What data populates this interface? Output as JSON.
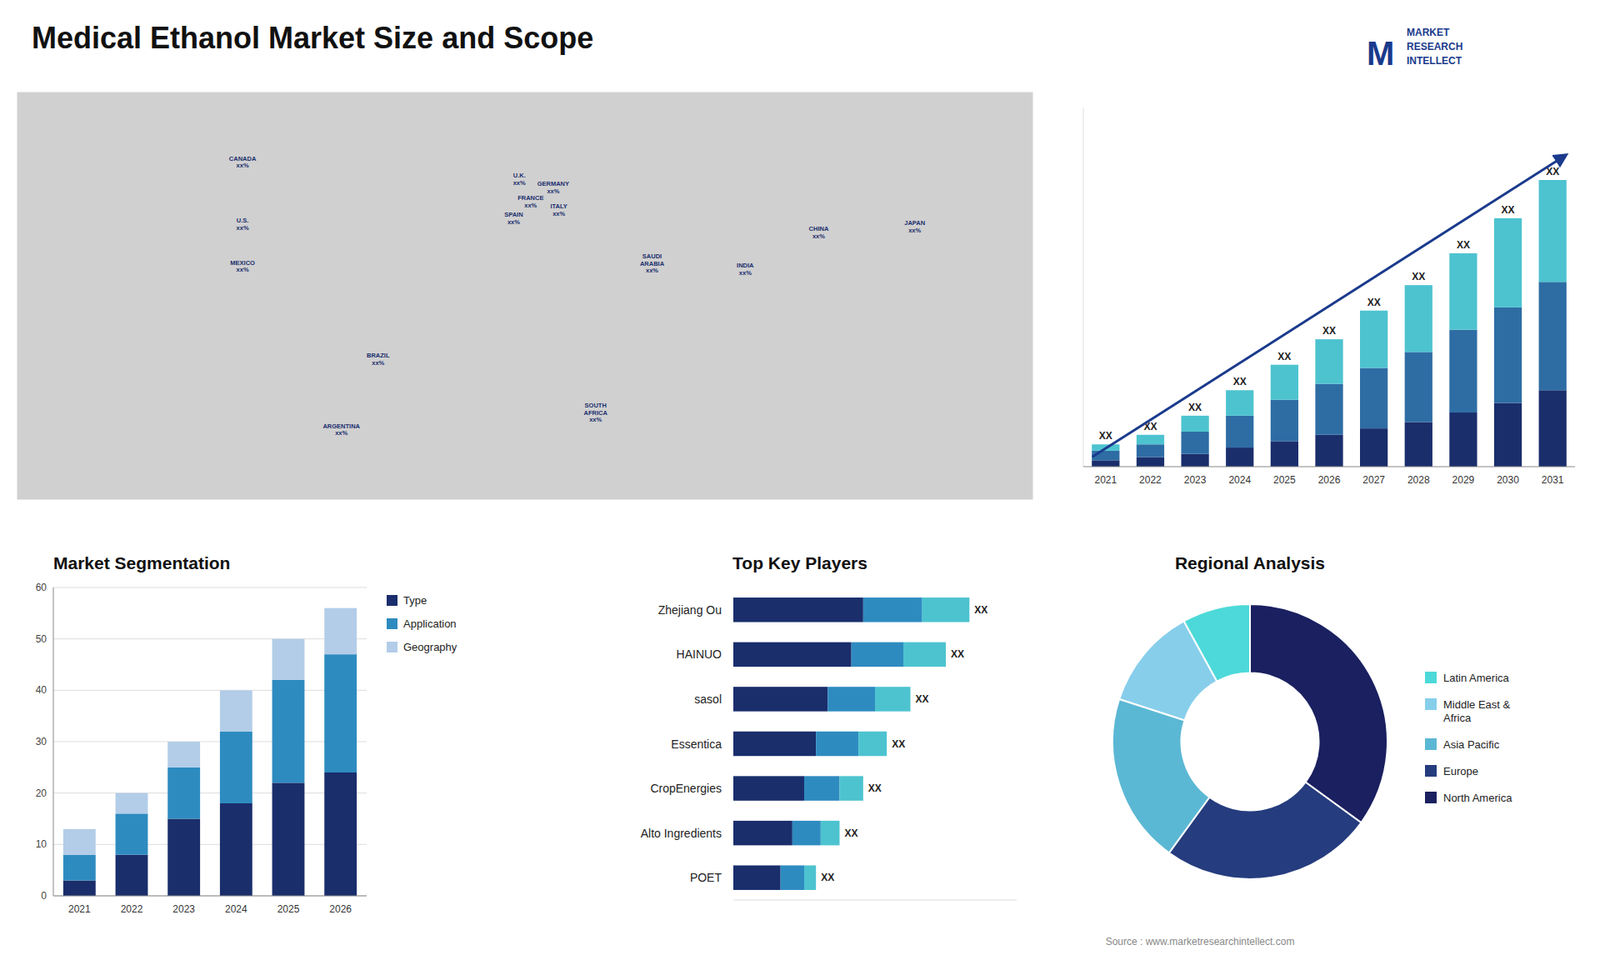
{
  "title": "Medical Ethanol Market Size and Scope",
  "source": "Source : www.marketresearchintellect.com",
  "logo_text": [
    "M",
    "MARKET",
    "RESEARCH",
    "INTELLECT"
  ],
  "chart_data": [
    {
      "type": "map",
      "xlim": [
        -180,
        180
      ],
      "ylim": [
        -60,
        85
      ],
      "tick_labels": false,
      "annotations": [
        {
          "text": "U.S.",
          "label": "xx%",
          "x": -100,
          "y": 38
        },
        {
          "text": "CANADA",
          "label": "xx%",
          "x": -100,
          "y": 60
        },
        {
          "text": "MEXICO",
          "label": "xx%",
          "x": -100,
          "y": 23
        },
        {
          "text": "BRAZIL",
          "label": "xx%",
          "x": -52,
          "y": -10
        },
        {
          "text": "ARGENTINA",
          "label": "xx%",
          "x": -65,
          "y": -35
        },
        {
          "text": "U.K.",
          "label": "xx%",
          "x": -2,
          "y": 54
        },
        {
          "text": "FRANCE",
          "label": "xx%",
          "x": 2,
          "y": 46
        },
        {
          "text": "SPAIN",
          "label": "xx%",
          "x": -4,
          "y": 40
        },
        {
          "text": "GERMANY",
          "label": "xx%",
          "x": 10,
          "y": 51
        },
        {
          "text": "ITALY",
          "label": "xx%",
          "x": 12,
          "y": 43
        },
        {
          "text": "SAUDI\nARABIA",
          "label": "xx%",
          "x": 45,
          "y": 24
        },
        {
          "text": "SOUTH\nAFRICA",
          "label": "xx%",
          "x": 25,
          "y": -29
        },
        {
          "text": "INDIA",
          "label": "xx%",
          "x": 78,
          "y": 22
        },
        {
          "text": "CHINA",
          "label": "xx%",
          "x": 104,
          "y": 35
        },
        {
          "text": "JAPAN",
          "label": "xx%",
          "x": 138,
          "y": 37
        }
      ]
    },
    {
      "type": "bar",
      "stacked": true,
      "categories": [
        "2021",
        "2022",
        "2023",
        "2024",
        "2025",
        "2026",
        "2027",
        "2028",
        "2029",
        "2030",
        "2031"
      ],
      "series": [
        {
          "color": "#1a2e6c",
          "values": [
            1,
            1.5,
            2,
            3,
            4,
            5,
            6,
            7,
            8.5,
            10,
            12
          ]
        },
        {
          "color": "#2e6da4",
          "values": [
            1.5,
            2,
            3.5,
            5,
            6.5,
            8,
            9.5,
            11,
            13,
            15,
            17
          ]
        },
        {
          "color": "#4dc3d0",
          "values": [
            1,
            1.5,
            2.5,
            4,
            5.5,
            7,
            9,
            10.5,
            12,
            14,
            16
          ]
        }
      ],
      "total_labels": [
        "XX",
        "XX",
        "XX",
        "XX",
        "XX",
        "XX",
        "XX",
        "XX",
        "XX",
        "XX",
        "XX"
      ],
      "ylim": [
        0,
        56.25
      ],
      "tick_labels": "x"
    },
    {
      "type": "bar",
      "stacked": true,
      "title": "Market Segmentation",
      "categories": [
        "2021",
        "2022",
        "2023",
        "2024",
        "2025",
        "2026"
      ],
      "series": [
        {
          "name": "Type",
          "color": "#1a2e6c",
          "values": [
            3,
            8,
            15,
            18,
            22,
            24
          ]
        },
        {
          "name": "Application",
          "color": "#2e8bc0",
          "values": [
            5,
            8,
            10,
            14,
            20,
            23
          ]
        },
        {
          "name": "Geography",
          "color": "#b3cde8",
          "values": [
            5,
            4,
            5,
            8,
            8,
            9
          ]
        }
      ],
      "ylim": [
        0,
        60
      ],
      "yticks": [
        0,
        10,
        20,
        30,
        40,
        50,
        60
      ],
      "grid": true,
      "legend": "right"
    },
    {
      "type": "bar",
      "orientation": "horizontal",
      "stacked": true,
      "title": "Top Key Players",
      "categories": [
        "POET",
        "Alto Ingredients",
        "CropEnergies",
        "Essentica",
        "sasol",
        "HAINUO",
        "Zhejiang Ou"
      ],
      "series": [
        {
          "color": "#1a2e6c",
          "values": [
            2,
            2.5,
            3,
            3.5,
            4,
            5,
            5.5
          ]
        },
        {
          "color": "#2e8bc0",
          "values": [
            1,
            1.2,
            1.5,
            1.8,
            2,
            2.2,
            2.5
          ]
        },
        {
          "color": "#4dc3d0",
          "values": [
            0.5,
            0.8,
            1,
            1.2,
            1.5,
            1.8,
            2
          ]
        }
      ],
      "total_labels": [
        "XX",
        "XX",
        "XX",
        "XX",
        "XX",
        "XX",
        "XX"
      ],
      "xlim": [
        0,
        12
      ],
      "tick_labels": "y"
    },
    {
      "type": "pie",
      "title": "Regional Analysis",
      "categories": [
        "Latin America",
        "Middle East &\nAfrica",
        "Asia Pacific",
        "Europe",
        "North America"
      ],
      "values": [
        8,
        12,
        20,
        25,
        35
      ],
      "colors": [
        "#4dd9d9",
        "#87ceeb",
        "#5bb8d4",
        "#253c7e",
        "#1a2060"
      ],
      "legend": "right"
    }
  ]
}
